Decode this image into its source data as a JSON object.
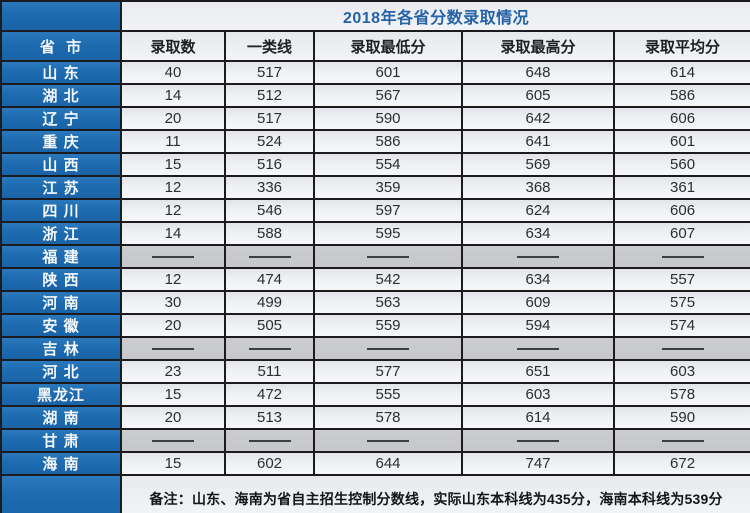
{
  "table": {
    "title": "2018年各省分数录取情况",
    "columns": {
      "province": "省  市",
      "count": "录取数",
      "tier1": "一类线",
      "min": "录取最低分",
      "max": "录取最高分",
      "avg": "录取平均分"
    },
    "rows": [
      {
        "province": "山 东",
        "count": "40",
        "tier1": "517",
        "min": "601",
        "max": "648",
        "avg": "614",
        "empty": false
      },
      {
        "province": "湖 北",
        "count": "14",
        "tier1": "512",
        "min": "567",
        "max": "605",
        "avg": "586",
        "empty": false
      },
      {
        "province": "辽 宁",
        "count": "20",
        "tier1": "517",
        "min": "590",
        "max": "642",
        "avg": "606",
        "empty": false
      },
      {
        "province": "重 庆",
        "count": "11",
        "tier1": "524",
        "min": "586",
        "max": "641",
        "avg": "601",
        "empty": false
      },
      {
        "province": "山 西",
        "count": "15",
        "tier1": "516",
        "min": "554",
        "max": "569",
        "avg": "560",
        "empty": false
      },
      {
        "province": "江 苏",
        "count": "12",
        "tier1": "336",
        "min": "359",
        "max": "368",
        "avg": "361",
        "empty": false
      },
      {
        "province": "四 川",
        "count": "12",
        "tier1": "546",
        "min": "597",
        "max": "624",
        "avg": "606",
        "empty": false
      },
      {
        "province": "浙 江",
        "count": "14",
        "tier1": "588",
        "min": "595",
        "max": "634",
        "avg": "607",
        "empty": false
      },
      {
        "province": "福 建",
        "count": "",
        "tier1": "",
        "min": "",
        "max": "",
        "avg": "",
        "empty": true
      },
      {
        "province": "陕 西",
        "count": "12",
        "tier1": "474",
        "min": "542",
        "max": "634",
        "avg": "557",
        "empty": false
      },
      {
        "province": "河 南",
        "count": "30",
        "tier1": "499",
        "min": "563",
        "max": "609",
        "avg": "575",
        "empty": false
      },
      {
        "province": "安 徽",
        "count": "20",
        "tier1": "505",
        "min": "559",
        "max": "594",
        "avg": "574",
        "empty": false
      },
      {
        "province": "吉 林",
        "count": "",
        "tier1": "",
        "min": "",
        "max": "",
        "avg": "",
        "empty": true
      },
      {
        "province": "河 北",
        "count": "23",
        "tier1": "511",
        "min": "577",
        "max": "651",
        "avg": "603",
        "empty": false
      },
      {
        "province": "黑龙江",
        "count": "15",
        "tier1": "472",
        "min": "555",
        "max": "603",
        "avg": "578",
        "empty": false
      },
      {
        "province": "湖 南",
        "count": "20",
        "tier1": "513",
        "min": "578",
        "max": "614",
        "avg": "590",
        "empty": false
      },
      {
        "province": "甘 肃",
        "count": "",
        "tier1": "",
        "min": "",
        "max": "",
        "avg": "",
        "empty": true
      },
      {
        "province": "海 南",
        "count": "15",
        "tier1": "602",
        "min": "644",
        "max": "747",
        "avg": "672",
        "empty": false
      }
    ],
    "remark": "备注：山东、海南为省自主招生控制分数线，实际山东本科线为435分，海南本科线为539分"
  }
}
